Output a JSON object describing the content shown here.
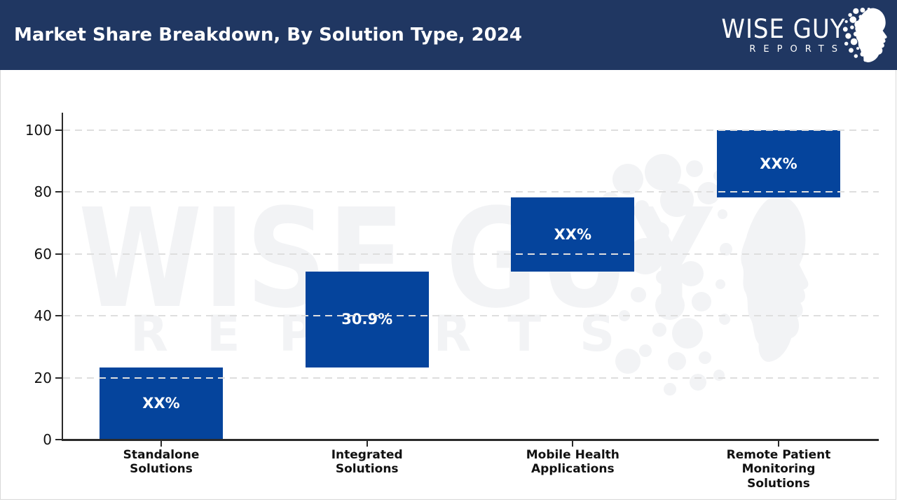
{
  "header": {
    "title": "Market Share Breakdown, By Solution Type, 2024",
    "logo": {
      "name": "WISE GUY",
      "sub": "REPORTS",
      "icon": "dotted-face-profile"
    }
  },
  "watermark": {
    "line1": "WISE GUY",
    "line2": "REPORTS",
    "icon": "dotted-face-profile"
  },
  "chart_data": {
    "type": "bar",
    "subtype": "waterfall",
    "title": "Market Share Breakdown, By Solution Type, 2024",
    "categories": [
      "Standalone\nSolutions",
      "Integrated\nSolutions",
      "Mobile Health\nApplications",
      "Remote Patient\nMonitoring\nSolutions"
    ],
    "segments": [
      {
        "category": "Standalone Solutions",
        "start": 0,
        "end": 23.4,
        "label": "XX%"
      },
      {
        "category": "Integrated Solutions",
        "start": 23.4,
        "end": 54.3,
        "label": "30.9%",
        "value": 30.9
      },
      {
        "category": "Mobile Health Applications",
        "start": 54.3,
        "end": 78.3,
        "label": "XX%"
      },
      {
        "category": "Remote Patient Monitoring Solutions",
        "start": 78.3,
        "end": 100,
        "label": "XX%"
      }
    ],
    "yticks": [
      0,
      20,
      40,
      60,
      80,
      100
    ],
    "ylim": [
      0,
      105.5
    ],
    "xlabel": "",
    "ylabel": "",
    "grid": "horizontal-dashed",
    "legend": "none",
    "bar_color": "#05449c",
    "value_label_color": "#ffffff"
  },
  "colors": {
    "header_bg": "#203762",
    "bar": "#05449c",
    "gridline": "#dedede",
    "axis": "#2a2a2a",
    "watermark": "#f2f3f5",
    "frame_border": "#d8d8d8"
  }
}
